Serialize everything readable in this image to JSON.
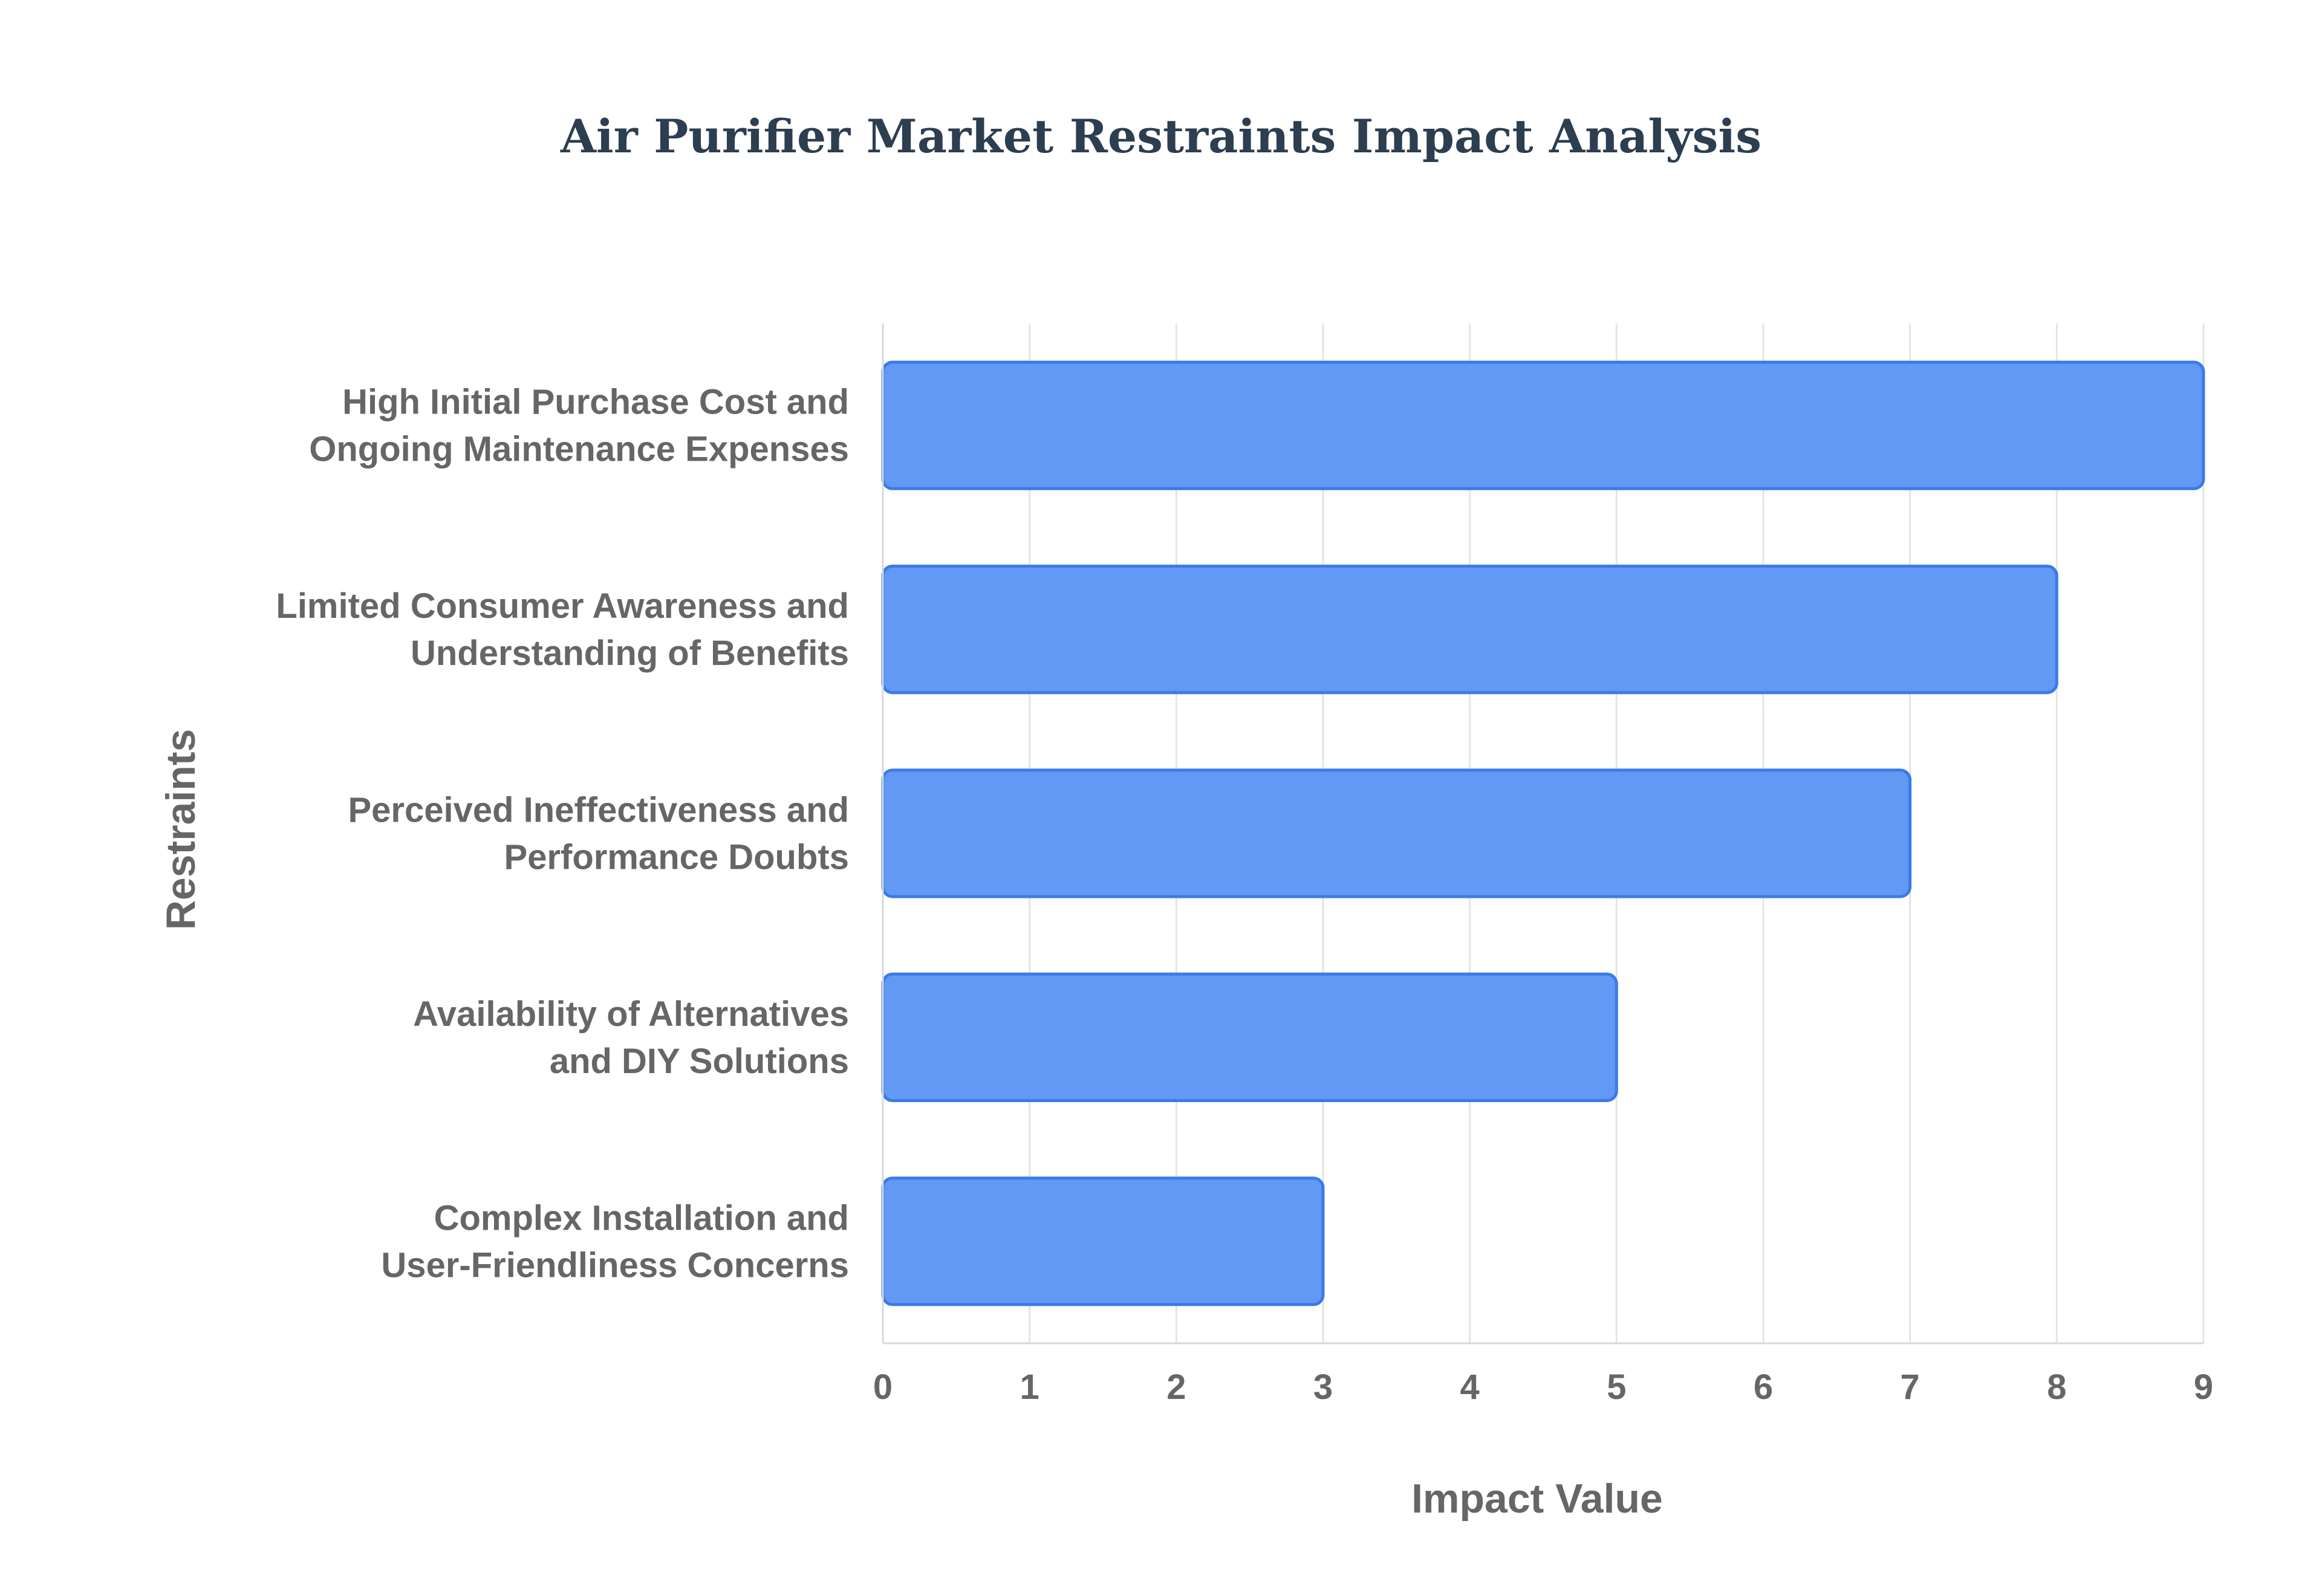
{
  "chart_data": {
    "type": "bar",
    "orientation": "horizontal",
    "title": "Air Purifier Market Restraints Impact Analysis",
    "xlabel": "Impact Value",
    "ylabel": "Restraints",
    "xlim": [
      0,
      9
    ],
    "xticks": [
      "0",
      "1",
      "2",
      "3",
      "4",
      "5",
      "6",
      "7",
      "8",
      "9"
    ],
    "grid": true,
    "bar_color": "#6199f5",
    "bar_edge_color": "#3b7be8",
    "categories": [
      [
        "High Initial Purchase Cost and",
        "Ongoing Maintenance Expenses"
      ],
      [
        "Limited Consumer Awareness and",
        "Understanding of Benefits"
      ],
      [
        "Perceived Ineffectiveness and",
        "Performance Doubts"
      ],
      [
        "Availability of Alternatives",
        "and DIY Solutions"
      ],
      [
        "Complex Installation and",
        "User-Friendliness Concerns"
      ]
    ],
    "values": [
      9,
      8,
      7,
      5,
      3
    ]
  }
}
